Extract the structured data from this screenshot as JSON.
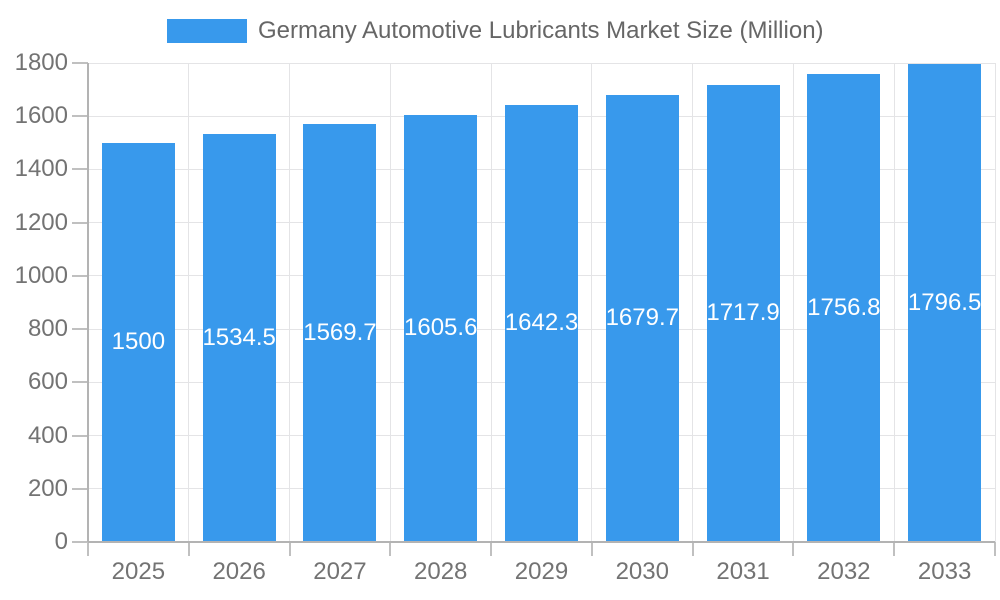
{
  "legend": {
    "label": "Germany Automotive Lubricants Market Size (Million)"
  },
  "chart_data": {
    "type": "bar",
    "title": "Germany Automotive Lubricants Market Size (Million)",
    "legend": "Germany Automotive Lubricants Market Size (Million)",
    "legend_position": "top",
    "categories": [
      "2025",
      "2026",
      "2027",
      "2028",
      "2029",
      "2030",
      "2031",
      "2032",
      "2033"
    ],
    "values": [
      1500,
      1534.5,
      1569.7,
      1605.6,
      1642.3,
      1679.7,
      1717.9,
      1756.8,
      1796.5
    ],
    "value_labels": [
      "1500",
      "1534.5",
      "1569.7",
      "1605.6",
      "1642.3",
      "1679.7",
      "1717.9",
      "1756.8",
      "1796.5"
    ],
    "xlabel": "",
    "ylabel": "",
    "ylim": [
      0,
      1800
    ],
    "y_ticks": [
      0,
      200,
      400,
      600,
      800,
      1000,
      1200,
      1400,
      1600,
      1800
    ],
    "grid": true,
    "colors": {
      "bar": "#3899EC",
      "gridline": "#E4E4E6",
      "axis": "#B3B3B3",
      "tick": "#C0C0C0",
      "axis_label": "#737373",
      "legend_text": "#666666",
      "bar_label": "#FFFFFF",
      "background": "#FFFFFF"
    }
  }
}
